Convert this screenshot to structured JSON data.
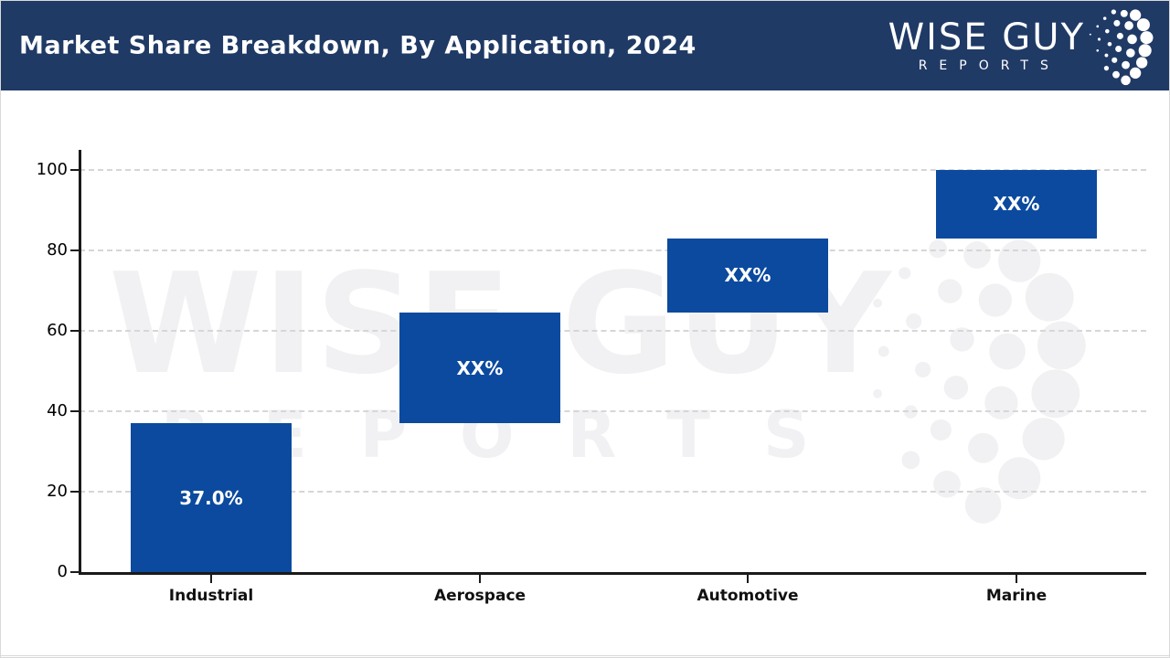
{
  "header": {
    "title": "Market Share Breakdown, By Application, 2024",
    "bg_color": "#203a66",
    "logo": {
      "line1": "WISE GUY",
      "line2": "REPORTS"
    }
  },
  "watermark": {
    "line1": "WISE GUY",
    "line2": "REPORTS"
  },
  "chart_data": {
    "type": "bar",
    "subtype": "waterfall",
    "title": "Market Share Breakdown, By Application, 2024",
    "categories": [
      "Industrial",
      "Aerospace",
      "Automotive",
      "Marine"
    ],
    "bars": [
      {
        "category": "Industrial",
        "start": 0,
        "end": 37,
        "label": "37.0%"
      },
      {
        "category": "Aerospace",
        "start": 37,
        "end": 64.5,
        "label": "XX%"
      },
      {
        "category": "Automotive",
        "start": 64.5,
        "end": 83,
        "label": "XX%"
      },
      {
        "category": "Marine",
        "start": 83,
        "end": 100,
        "label": "XX%"
      }
    ],
    "xlabel": "",
    "ylabel": "",
    "ylim": [
      0,
      100
    ],
    "yticks": [
      0,
      20,
      40,
      60,
      80,
      100
    ],
    "grid": "horizontal-dashed",
    "legend": "none",
    "bar_color": "#0b4a9e",
    "bar_label_color": "#ffffff"
  }
}
